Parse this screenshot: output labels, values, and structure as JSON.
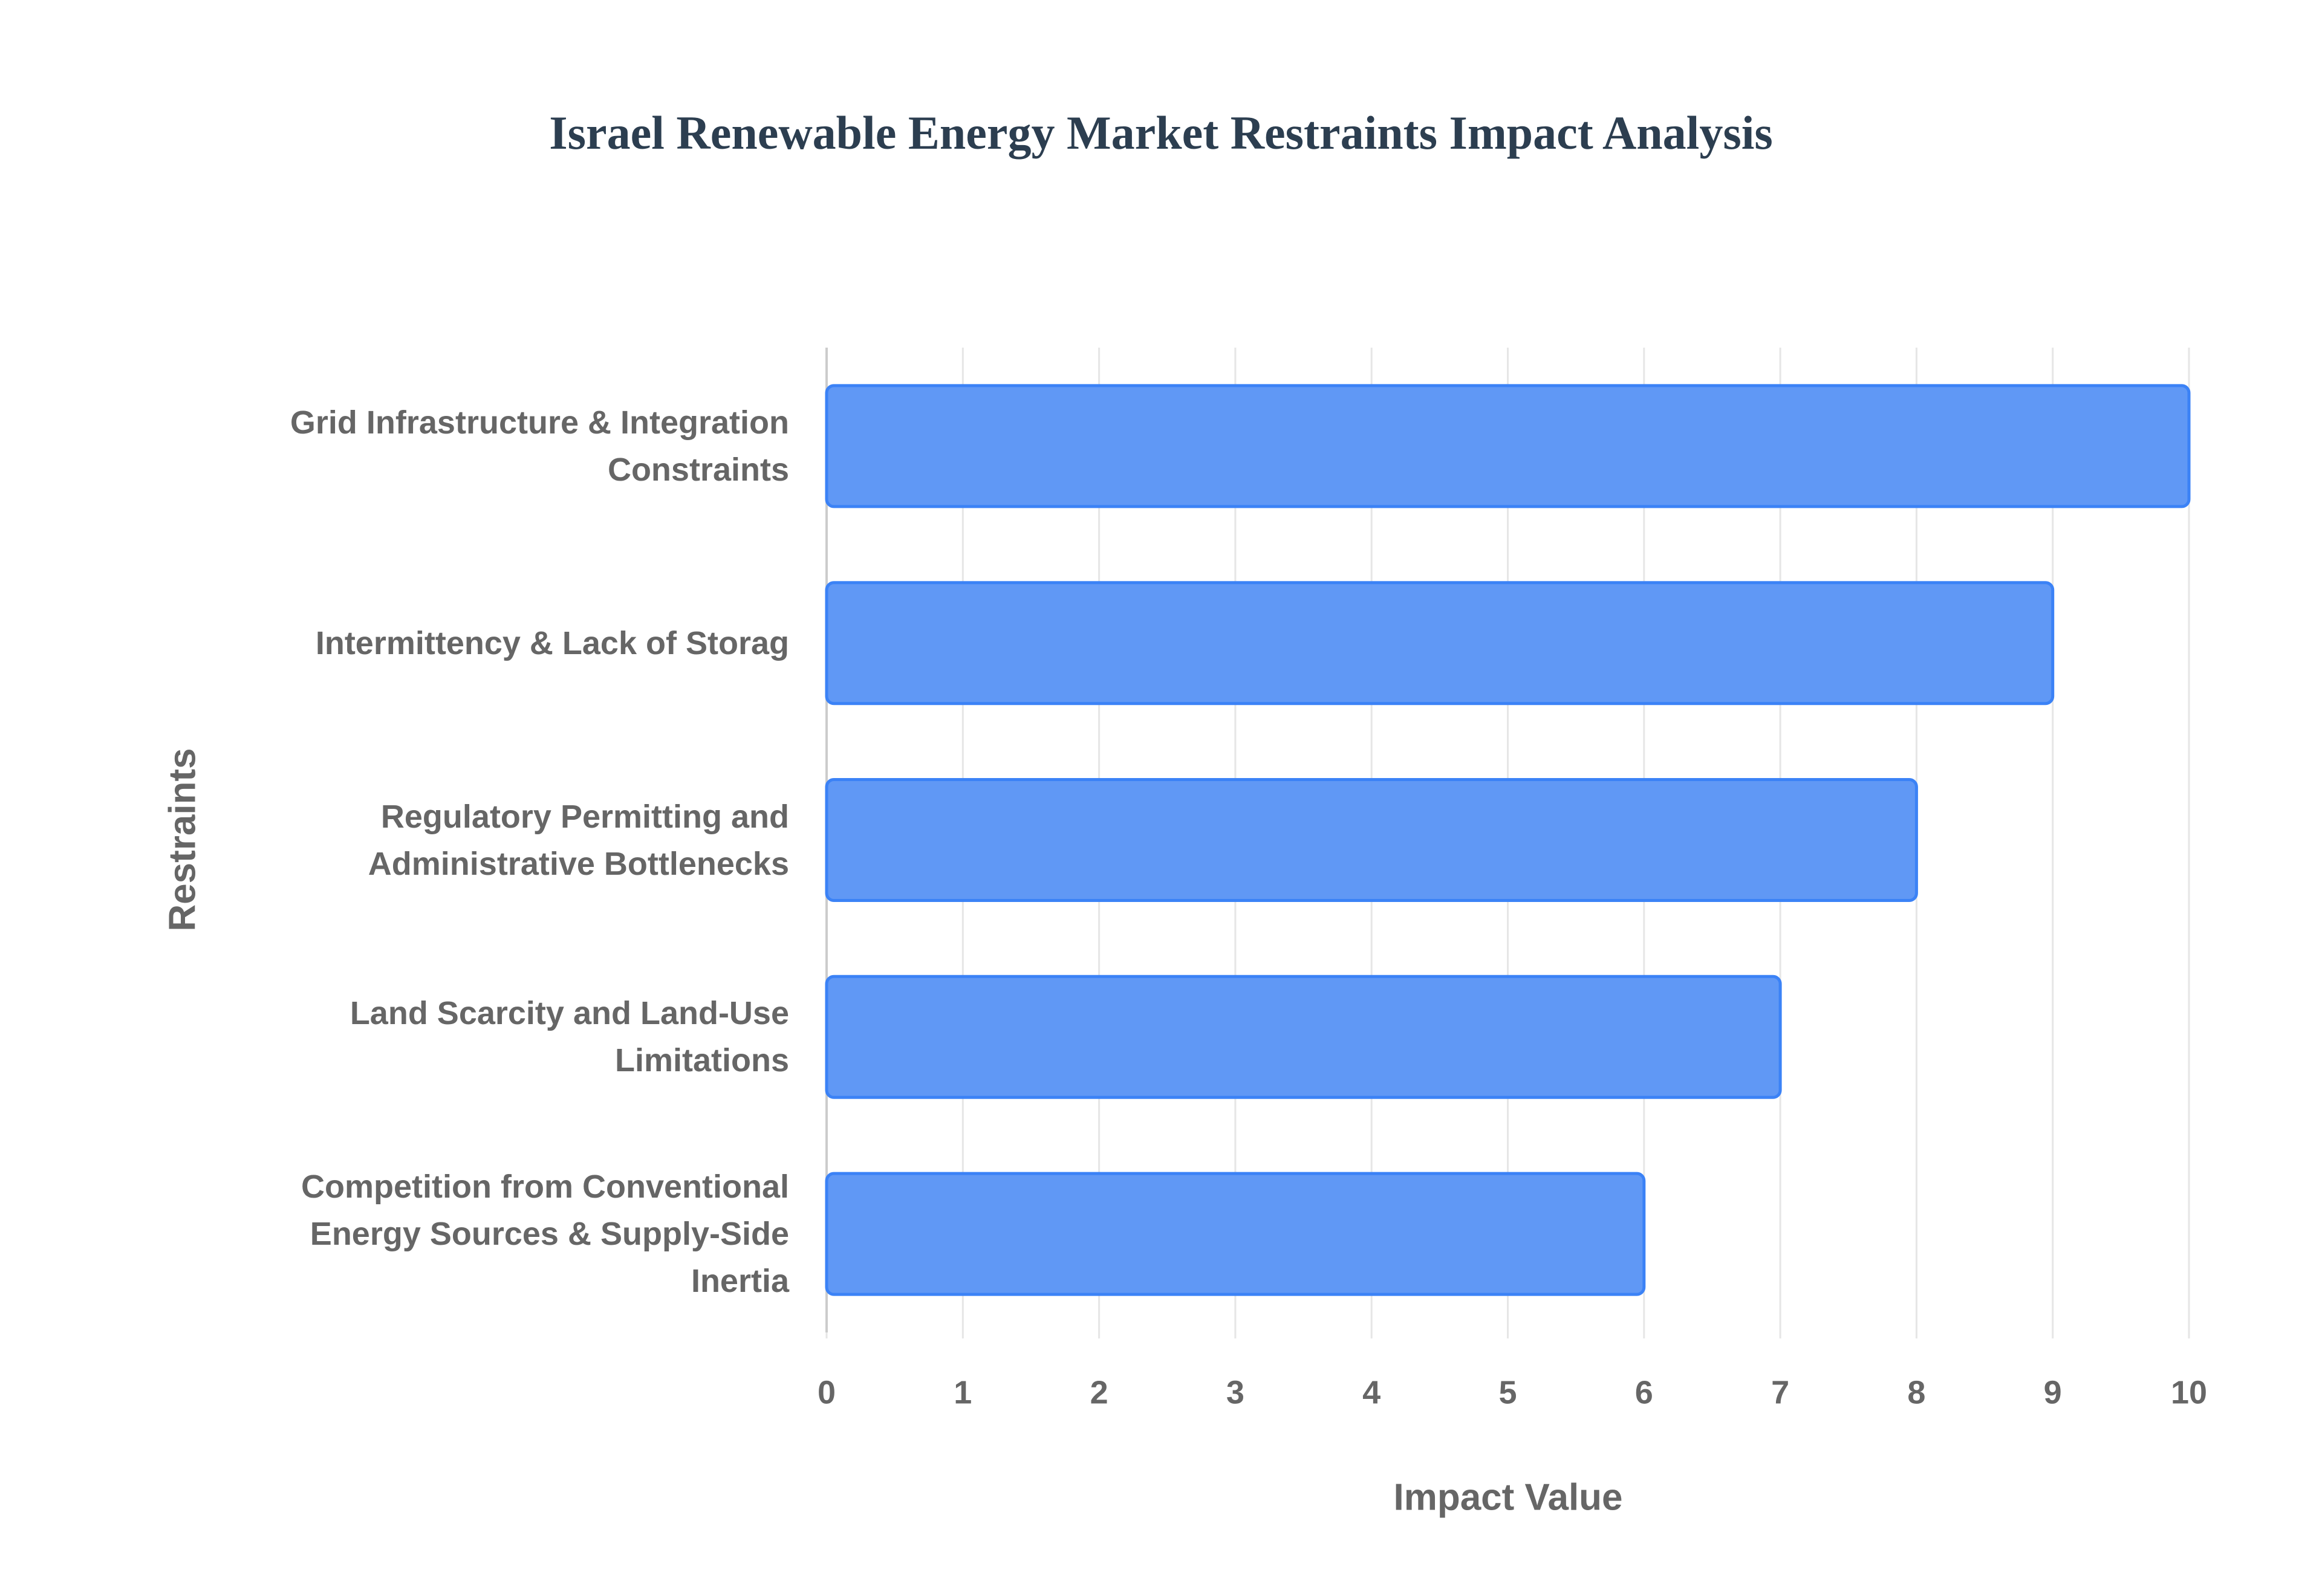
{
  "chart_data": {
    "type": "bar",
    "orientation": "horizontal",
    "title": "Israel Renewable Energy Market Restraints Impact Analysis",
    "x_label": "Impact Value",
    "y_label": "Restraints",
    "categories": [
      "Grid Infrastructure & Integration Constraints",
      "Intermittency & Lack of Storag",
      "Regulatory Permitting and Administrative Bottlenecks",
      "Land Scarcity and Land-Use Limitations",
      "Competition from Conventional Energy Sources & Supply-Side Inertia"
    ],
    "values": [
      10,
      9,
      8,
      7,
      6
    ],
    "color": "#6098f5",
    "edge_color": "#3b82f6",
    "xlim": [
      0,
      10
    ],
    "xticks": [
      0,
      1,
      2,
      3,
      4,
      5,
      6,
      7,
      8,
      9,
      10
    ],
    "grid": true
  }
}
